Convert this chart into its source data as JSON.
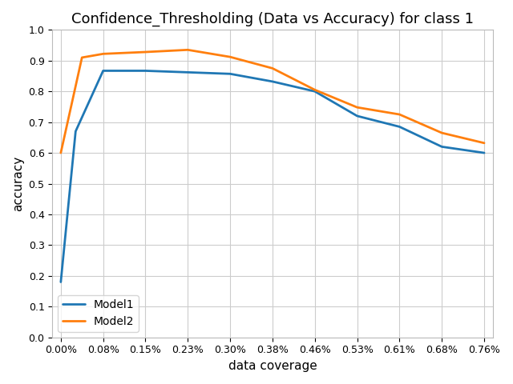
{
  "title": "Confidence_Thresholding (Data vs Accuracy) for class 1",
  "xlabel": "data coverage",
  "ylabel": "accuracy",
  "ylim": [
    0.0,
    1.0
  ],
  "yticks": [
    0.0,
    0.1,
    0.2,
    0.3,
    0.4,
    0.5,
    0.6,
    0.7,
    0.8,
    0.9,
    1.0
  ],
  "xtick_positions": [
    0,
    1,
    2,
    3,
    4,
    5,
    6,
    7,
    8,
    9,
    10
  ],
  "xtick_labels": [
    "0.00%",
    "0.08%",
    "0.15%",
    "0.23%",
    "0.30%",
    "0.38%",
    "0.46%",
    "0.53%",
    "0.61%",
    "0.68%",
    "0.76%"
  ],
  "model1_color": "#1f77b4",
  "model2_color": "#ff7f0e",
  "model1_label": "Model1",
  "model2_label": "Model2",
  "model1_x": [
    0.0,
    0.35,
    1.0,
    2.0,
    3.0,
    4.0,
    5.0,
    6.0,
    7.0,
    8.0,
    9.0,
    10.0
  ],
  "model1_y": [
    0.18,
    0.67,
    0.867,
    0.867,
    0.862,
    0.857,
    0.832,
    0.8,
    0.72,
    0.685,
    0.62,
    0.6
  ],
  "model2_x": [
    0.0,
    0.5,
    1.0,
    2.0,
    3.0,
    4.0,
    5.0,
    6.0,
    7.0,
    8.0,
    9.0,
    10.0
  ],
  "model2_y": [
    0.6,
    0.91,
    0.922,
    0.928,
    0.935,
    0.912,
    0.875,
    0.805,
    0.748,
    0.725,
    0.665,
    0.632
  ],
  "background_color": "#ffffff",
  "grid_color": "#cccccc",
  "linewidth": 2.0,
  "title_fontsize": 13,
  "legend_loc": "lower left",
  "xlim": [
    -0.2,
    10.2
  ]
}
